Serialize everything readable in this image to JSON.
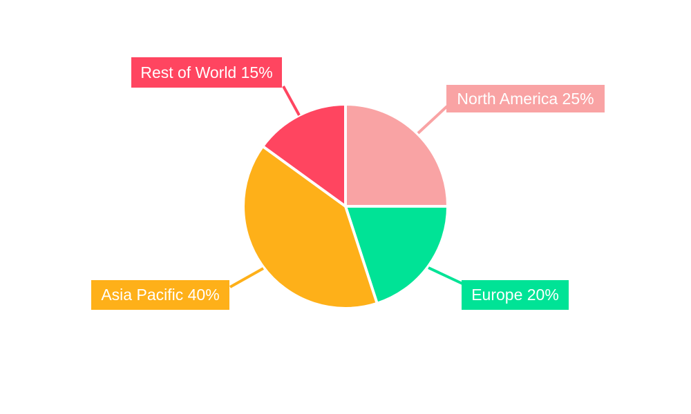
{
  "page": {
    "background": "#ffffff"
  },
  "chart_data": {
    "type": "pie",
    "title": "",
    "labels": [
      "North America",
      "Europe",
      "Asia Pacific",
      "Rest of World"
    ],
    "values": [
      25,
      20,
      40,
      15
    ],
    "unit": "%",
    "colors": [
      "#F9A3A4",
      "#00E396",
      "#FEB019",
      "#FF4560"
    ],
    "start_angle_deg": 0,
    "direction": "clockwise",
    "slice_border_color": "#ffffff",
    "label_text_color": "#ffffff",
    "legend_position": "none",
    "callout_labels": [
      {
        "text": "North America 25%",
        "value": 25
      },
      {
        "text": "Europe 20%",
        "value": 20
      },
      {
        "text": "Asia Pacific 40%",
        "value": 40
      },
      {
        "text": "Rest of World 15%",
        "value": 15
      }
    ]
  }
}
